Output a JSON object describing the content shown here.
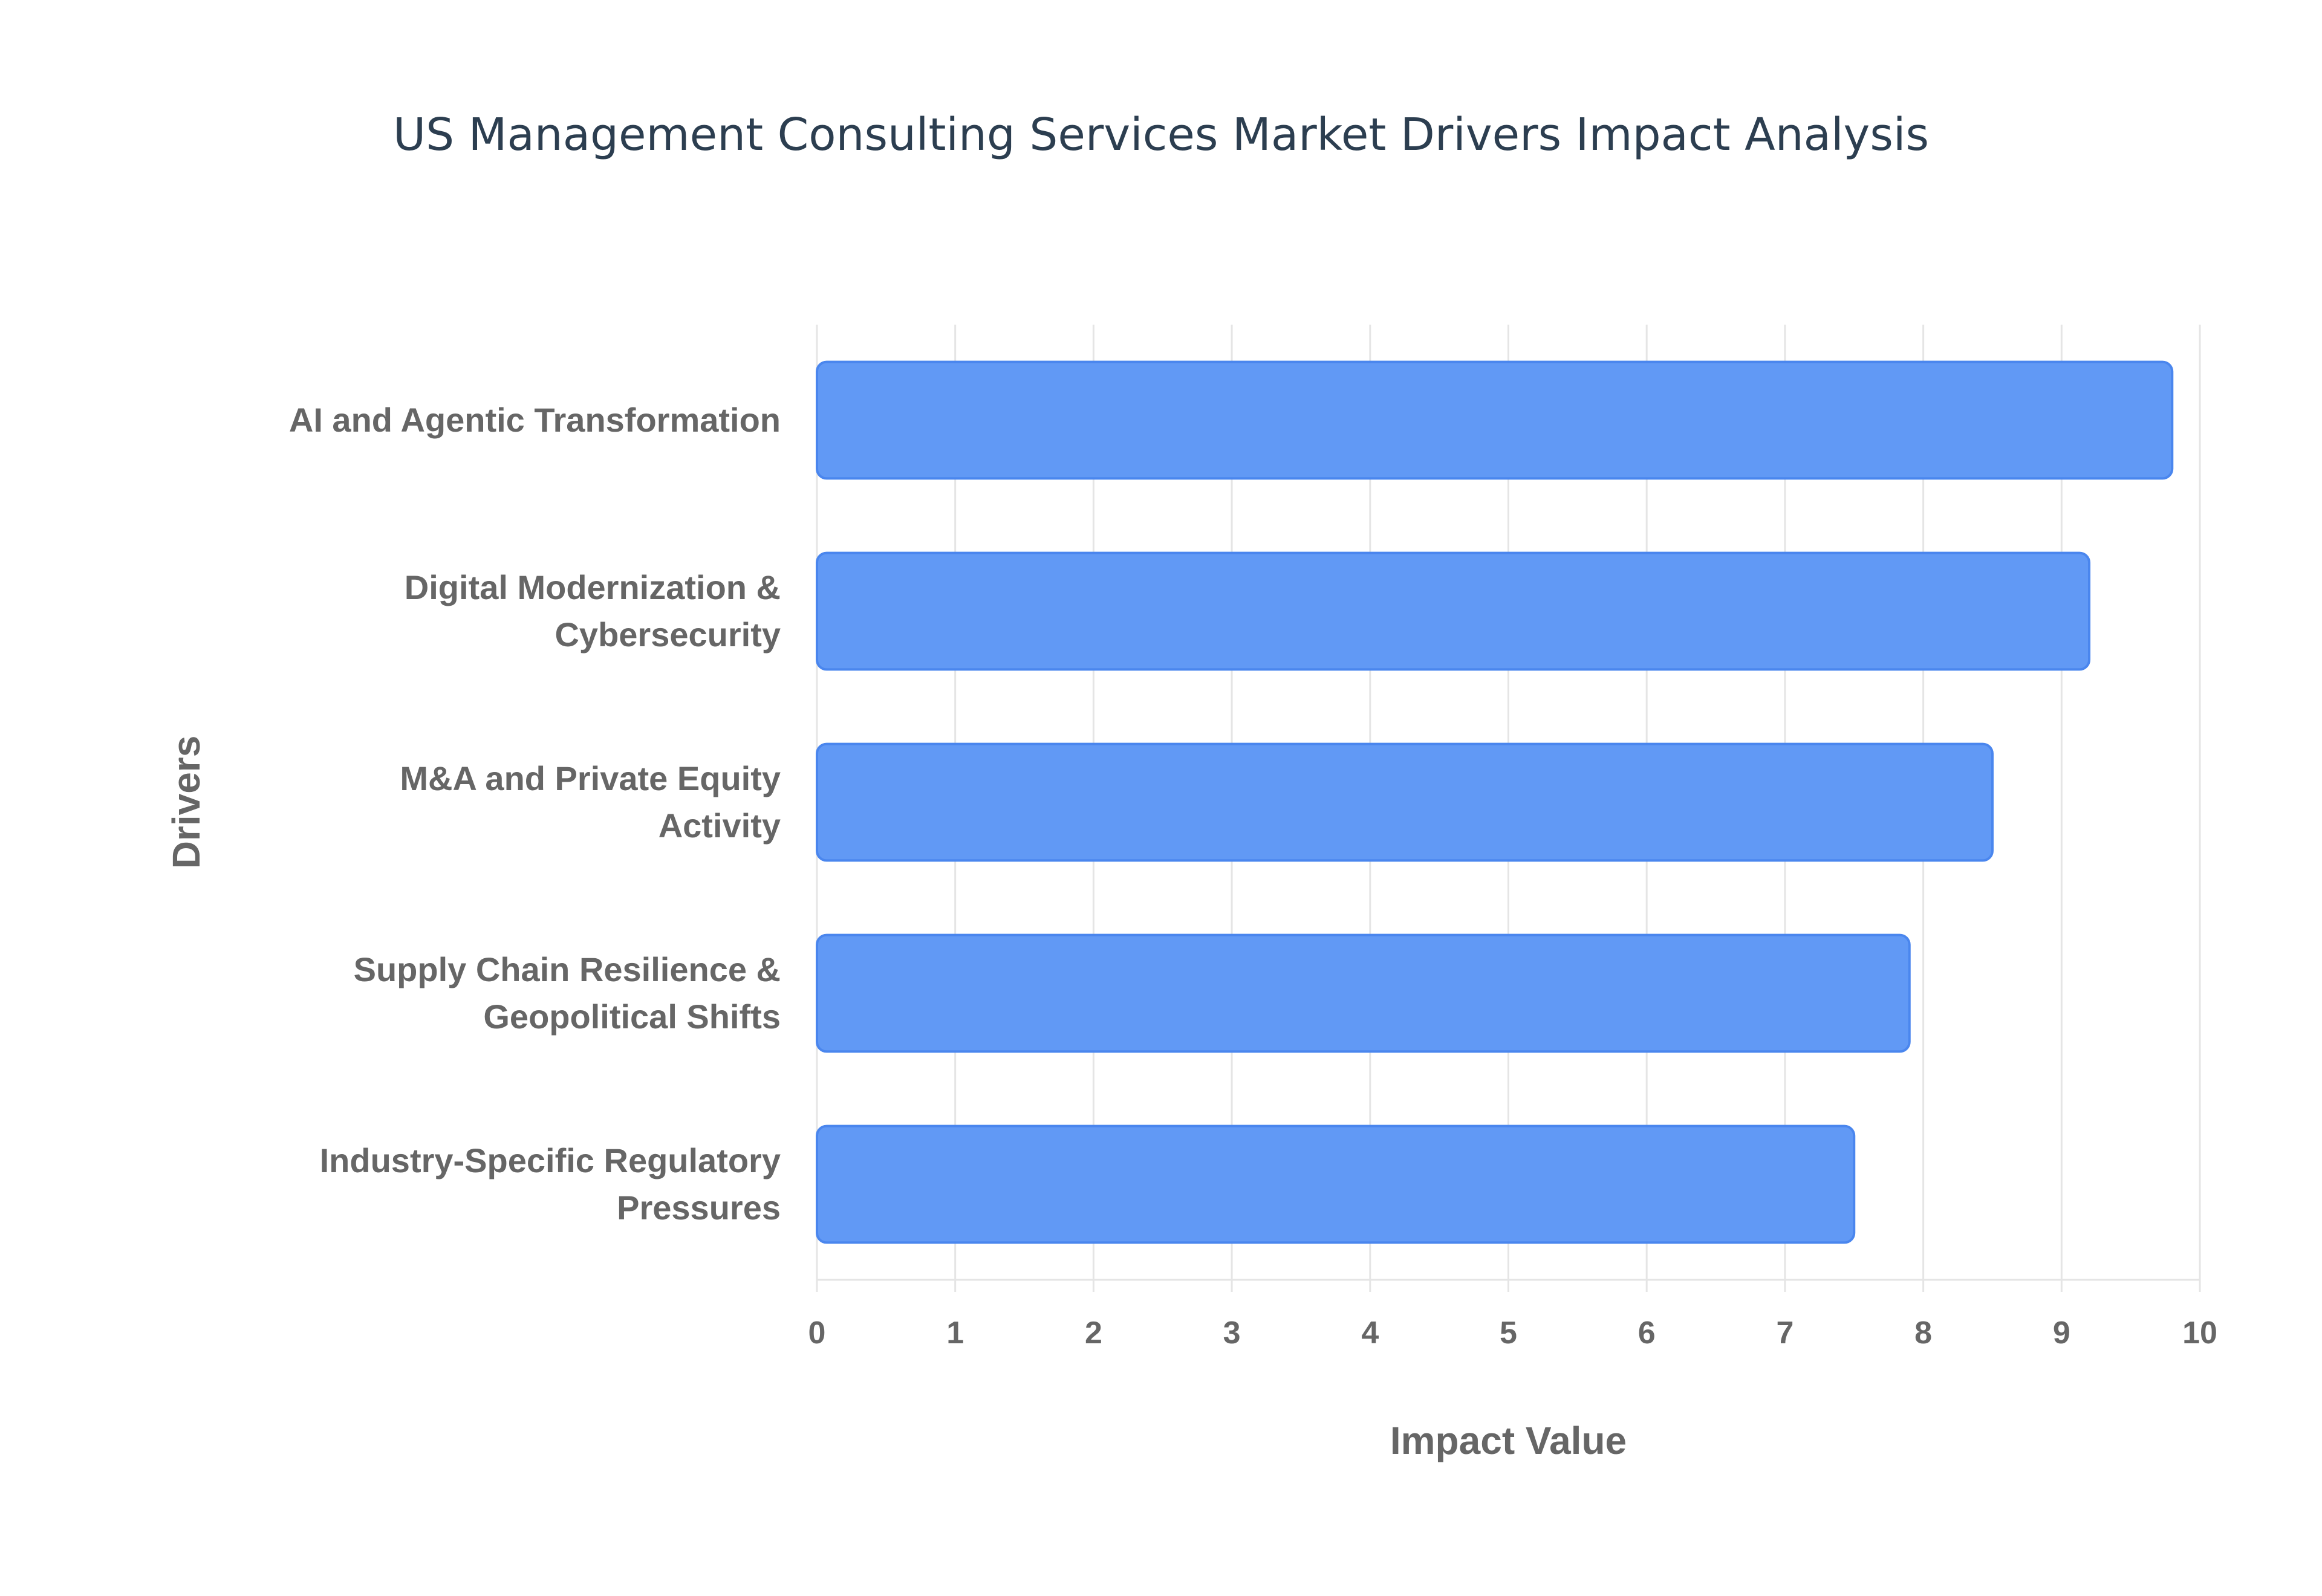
{
  "chart_data": {
    "type": "bar",
    "orientation": "horizontal",
    "title": "US Management Consulting Services Market Drivers Impact Analysis",
    "xlabel": "Impact Value",
    "ylabel": "Drivers",
    "categories": [
      [
        "AI and Agentic Transformation"
      ],
      [
        "Digital Modernization &",
        "Cybersecurity"
      ],
      [
        "M&A and Private Equity",
        "Activity"
      ],
      [
        "Supply Chain Resilience &",
        "Geopolitical Shifts"
      ],
      [
        "Industry-Specific Regulatory",
        "Pressures"
      ]
    ],
    "values": [
      9.8,
      9.2,
      8.5,
      7.9,
      7.5
    ],
    "xlim": [
      0,
      10
    ],
    "xticks": [
      "0",
      "1",
      "2",
      "3",
      "4",
      "5",
      "6",
      "7",
      "8",
      "9",
      "10"
    ],
    "grid": true,
    "colors": {
      "bar_fill": "#6199f5",
      "bar_border": "#4a86ee",
      "grid": "#e5e5e5",
      "title": "#2c3e50",
      "text": "#666666"
    }
  }
}
